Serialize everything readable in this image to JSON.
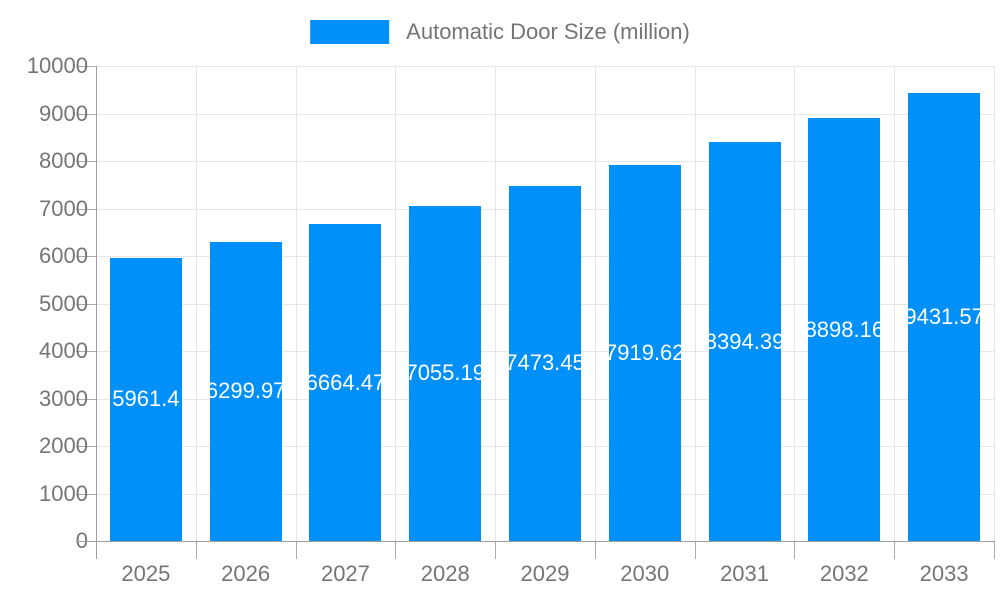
{
  "chart_data": {
    "type": "bar",
    "title": "",
    "legend": {
      "label": "Automatic Door Size (million)",
      "position": "top"
    },
    "categories": [
      "2025",
      "2026",
      "2027",
      "2028",
      "2029",
      "2030",
      "2031",
      "2032",
      "2033"
    ],
    "series": [
      {
        "name": "Automatic Door Size (million)",
        "values": [
          5961.4,
          6299.97,
          6664.47,
          7055.19,
          7473.45,
          7919.62,
          8394.39,
          8898.16,
          9431.57
        ],
        "labels": [
          "5961.4",
          "6299.97",
          "6664.47",
          "7055.19",
          "7473.45",
          "7919.62",
          "8394.39",
          "8898.16",
          "9431.57"
        ],
        "color": "#0190f9"
      }
    ],
    "xlabel": "",
    "ylabel": "",
    "ylim": [
      0,
      10000
    ],
    "ytick_interval": 1000,
    "ytick_labels": [
      "0",
      "1000",
      "2000",
      "3000",
      "4000",
      "5000",
      "6000",
      "7000",
      "8000",
      "9000",
      "10000"
    ],
    "grid": true,
    "value_label_color": "#ffffff"
  },
  "colors": {
    "bar": "#0190f9",
    "axis_line": "#9e9e9e",
    "gridline": "#e6e6e6",
    "tick": "#ababab",
    "axis_text": "#757575",
    "legend_text": "#757575",
    "background": "#ffffff"
  }
}
